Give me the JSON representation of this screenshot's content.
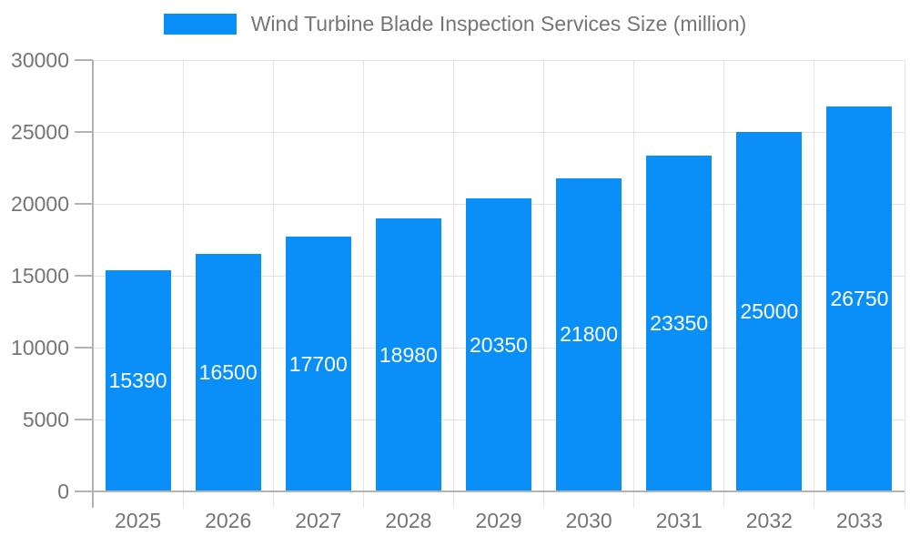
{
  "chart_data": {
    "type": "bar",
    "title": "Wind Turbine Blade Inspection Services Size (million)",
    "categories": [
      "2025",
      "2026",
      "2027",
      "2028",
      "2029",
      "2030",
      "2031",
      "2032",
      "2033"
    ],
    "values": [
      15390,
      16500,
      17700,
      18980,
      20350,
      21800,
      23350,
      25000,
      26750
    ],
    "xlabel": "",
    "ylabel": "",
    "ylim": [
      0,
      30000
    ],
    "yticks": [
      0,
      5000,
      10000,
      15000,
      20000,
      25000,
      30000
    ],
    "grid": true,
    "legend_position": "top",
    "legend_entries": [
      "Wind Turbine Blade Inspection Services Size (million)"
    ],
    "colors": {
      "bar": "#0a8ff9",
      "grid": "#e3e3e3",
      "axis": "#b3b3b3",
      "text": "#757575",
      "value_label": "#ffffff",
      "background": "#ffffff"
    }
  }
}
